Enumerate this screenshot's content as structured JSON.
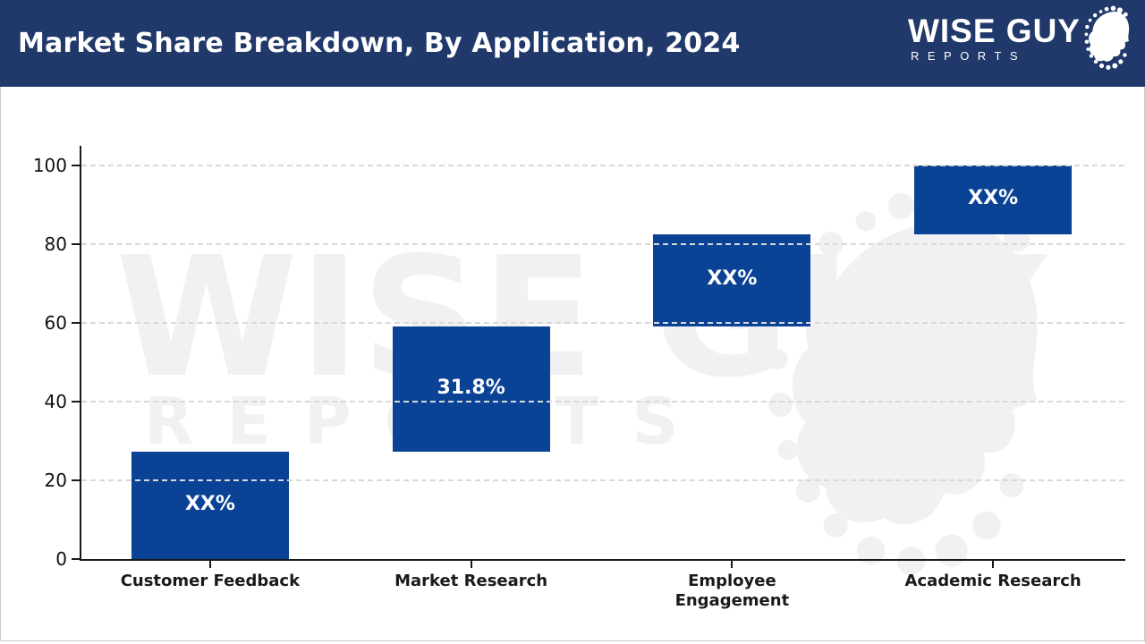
{
  "header": {
    "title": "Market Share Breakdown, By Application, 2024",
    "logo": {
      "wordmark": "WISE GUY",
      "subtext": "REPORTS"
    }
  },
  "watermark": {
    "wordmark": "WISE GUY",
    "subtext": "R E P O R T S"
  },
  "chart_data": {
    "type": "bar",
    "subtype": "floating-waterfall-bars",
    "title": "Market Share Breakdown, By Application, 2024",
    "categories": [
      "Customer Feedback",
      "Market Research",
      "Employee\nEngagement",
      "Academic Research"
    ],
    "segments": [
      {
        "category": "Customer Feedback",
        "start": 0,
        "end": 27.3,
        "label": "XX%"
      },
      {
        "category": "Market Research",
        "start": 27.3,
        "end": 59.1,
        "label": "31.8%"
      },
      {
        "category": "Employee Engagement",
        "start": 59.1,
        "end": 82.6,
        "label": "XX%"
      },
      {
        "category": "Academic Research",
        "start": 82.6,
        "end": 100,
        "label": "XX%"
      }
    ],
    "xlabel": "",
    "ylabel": "",
    "ylim": [
      0,
      100
    ],
    "yticks": [
      0,
      20,
      40,
      60,
      80,
      100
    ],
    "grid": "horizontal-dashed",
    "legend": "none",
    "bar_color": "#0a4296",
    "bar_label_color": "#ffffff",
    "grid_color": "#d9d9d9",
    "header_color": "#20386a",
    "axis_color": "#1a1a1a"
  }
}
